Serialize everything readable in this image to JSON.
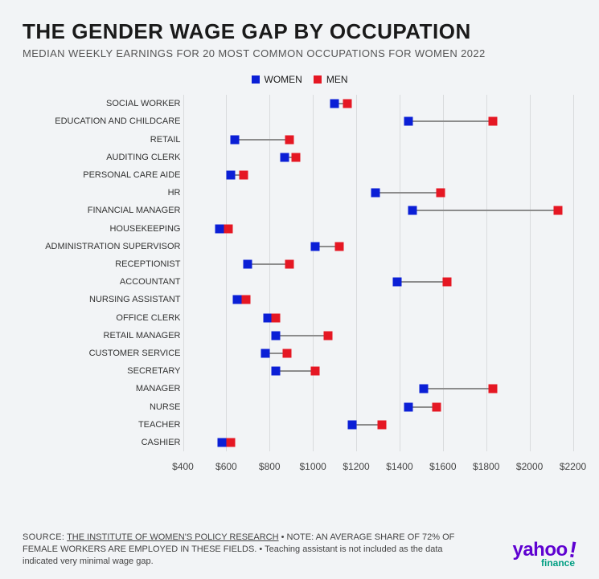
{
  "title": "THE GENDER WAGE GAP BY OCCUPATION",
  "subtitle": "MEDIAN WEEKLY EARNINGS FOR 20 MOST COMMON OCCUPATIONS FOR WOMEN 2022",
  "legend": {
    "women": "WOMEN",
    "men": "MEN"
  },
  "colors": {
    "background": "#f2f4f6",
    "women": "#0b1fd6",
    "men": "#e51723",
    "connector": "#8c8c8c",
    "gridline": "rgba(0,0,0,0.10)",
    "logo_purple": "#5f01d1",
    "logo_green": "#009e82"
  },
  "chart": {
    "type": "dumbbell",
    "x_min": 400,
    "x_max": 2200,
    "x_ticks": [
      400,
      600,
      800,
      1000,
      1200,
      1400,
      1600,
      1800,
      2000,
      2200
    ],
    "x_tick_labels": [
      "$400",
      "$600",
      "$800",
      "$1000",
      "$1200",
      "$1400",
      "$1600",
      "$1800",
      "$2000",
      "$2200"
    ],
    "series": [
      {
        "label": "SOCIAL WORKER",
        "women": 1100,
        "men": 1160
      },
      {
        "label": "EDUCATION AND CHILDCARE",
        "women": 1440,
        "men": 1830
      },
      {
        "label": "RETAIL",
        "women": 640,
        "men": 890
      },
      {
        "label": "AUDITING CLERK",
        "women": 870,
        "men": 920
      },
      {
        "label": "PERSONAL CARE AIDE",
        "women": 620,
        "men": 680
      },
      {
        "label": "HR",
        "women": 1290,
        "men": 1590
      },
      {
        "label": "FINANCIAL MANAGER",
        "women": 1460,
        "men": 2130
      },
      {
        "label": "HOUSEKEEPING",
        "women": 570,
        "men": 610
      },
      {
        "label": "ADMINISTRATION SUPERVISOR",
        "women": 1010,
        "men": 1120
      },
      {
        "label": "RECEPTIONIST",
        "women": 700,
        "men": 890
      },
      {
        "label": "ACCOUNTANT",
        "women": 1390,
        "men": 1620
      },
      {
        "label": "NURSING ASSISTANT",
        "women": 650,
        "men": 690
      },
      {
        "label": "OFFICE CLERK",
        "women": 790,
        "men": 830
      },
      {
        "label": "RETAIL MANAGER",
        "women": 830,
        "men": 1070
      },
      {
        "label": "CUSTOMER SERVICE",
        "women": 780,
        "men": 880
      },
      {
        "label": "SECRETARY",
        "women": 830,
        "men": 1010
      },
      {
        "label": "MANAGER",
        "women": 1510,
        "men": 1830
      },
      {
        "label": "NURSE",
        "women": 1440,
        "men": 1570
      },
      {
        "label": "TEACHER",
        "women": 1180,
        "men": 1320
      },
      {
        "label": "CASHIER",
        "women": 580,
        "men": 620
      }
    ]
  },
  "footer": {
    "source_label": "SOURCE:",
    "source_link": "THE INSTITUTE OF WOMEN'S POLICY RESEARCH",
    "note": " • NOTE: AN AVERAGE SHARE OF 72% OF FEMALE WORKERS ARE EMPLOYED IN THESE FIELDS. • Teaching assistant is not included as the data indicated very minimal wage gap.",
    "logo_word": "yahoo",
    "logo_bang": "!",
    "logo_sub": "finance"
  }
}
